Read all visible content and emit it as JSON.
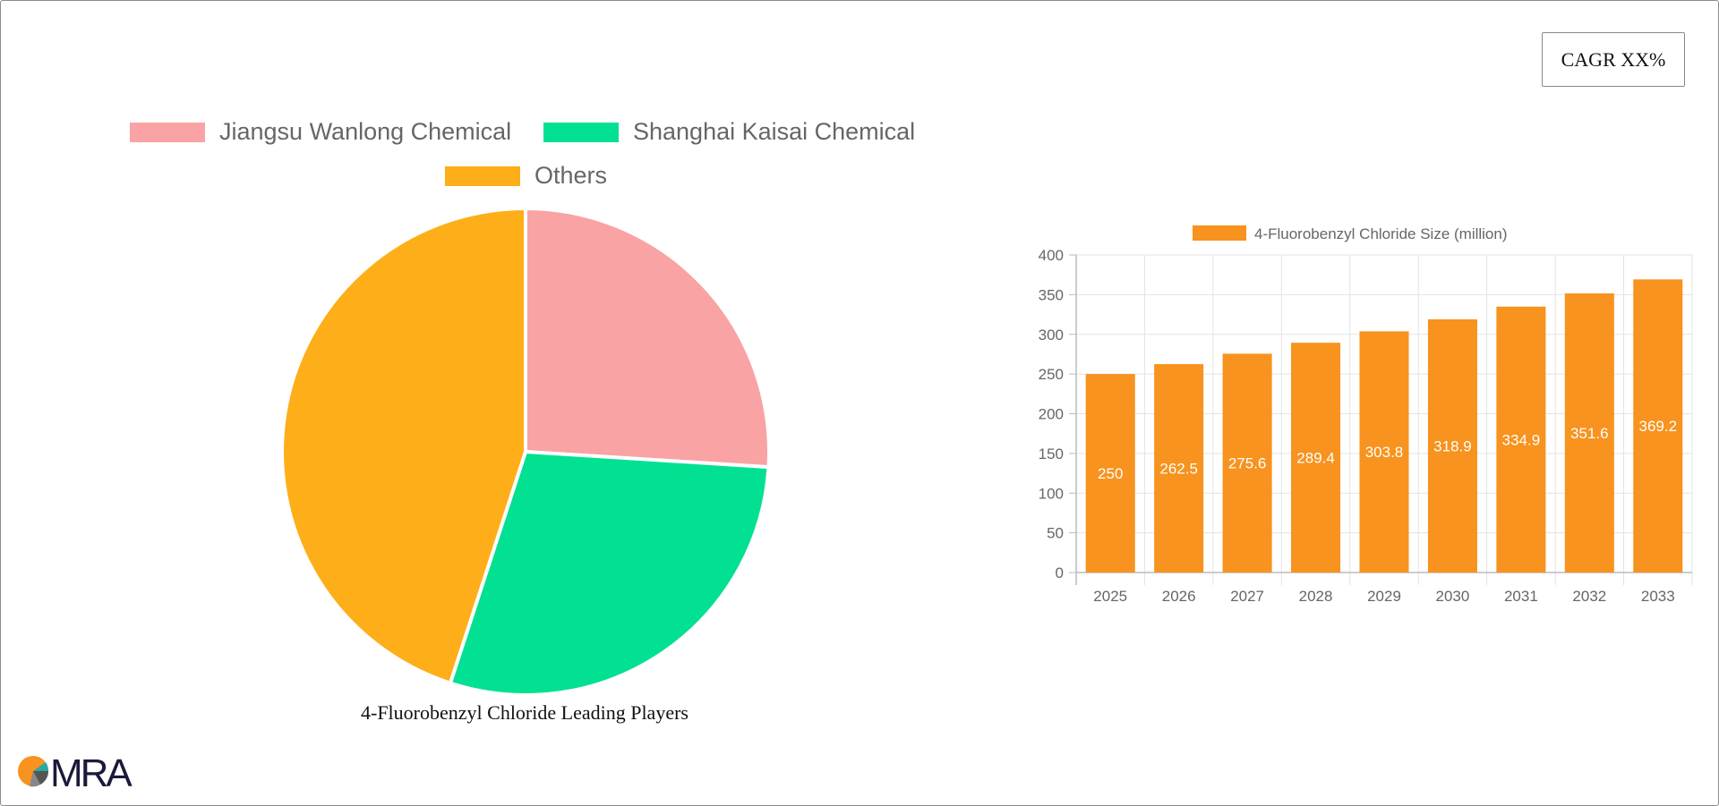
{
  "cagr_label": "CAGR XX%",
  "pie_chart": {
    "type": "pie",
    "caption": "4-Fluorobenzyl Chloride Leading Players",
    "legend": [
      {
        "label": "Jiangsu Wanlong Chemical",
        "color": "#f9a3a4"
      },
      {
        "label": "Shanghai Kaisai Chemical",
        "color": "#01e191"
      },
      {
        "label": "Others",
        "color": "#feae19"
      }
    ],
    "slices": [
      {
        "name": "Jiangsu Wanlong Chemical",
        "value": 26,
        "color": "#f9a3a4"
      },
      {
        "name": "Shanghai Kaisai Chemical",
        "value": 29,
        "color": "#01e191"
      },
      {
        "name": "Others",
        "value": 45,
        "color": "#feae19"
      }
    ]
  },
  "chart_data": {
    "type": "bar",
    "legend_label": "4-Fluorobenzyl Chloride Size (million)",
    "bar_color": "#f7931e",
    "categories": [
      "2025",
      "2026",
      "2027",
      "2028",
      "2029",
      "2030",
      "2031",
      "2032",
      "2033"
    ],
    "values": [
      250,
      262.5,
      275.6,
      289.4,
      303.8,
      318.9,
      334.9,
      351.6,
      369.2
    ],
    "value_labels": [
      "250",
      "262.5",
      "275.6",
      "289.4",
      "303.8",
      "318.9",
      "334.9",
      "351.6",
      "369.2"
    ],
    "ylim": [
      0,
      400
    ],
    "yticks": [
      "0",
      "50",
      "100",
      "150",
      "200",
      "250",
      "300",
      "350",
      "400"
    ],
    "grid": true,
    "legend_position": "top"
  },
  "logo": {
    "text": "MRA"
  }
}
